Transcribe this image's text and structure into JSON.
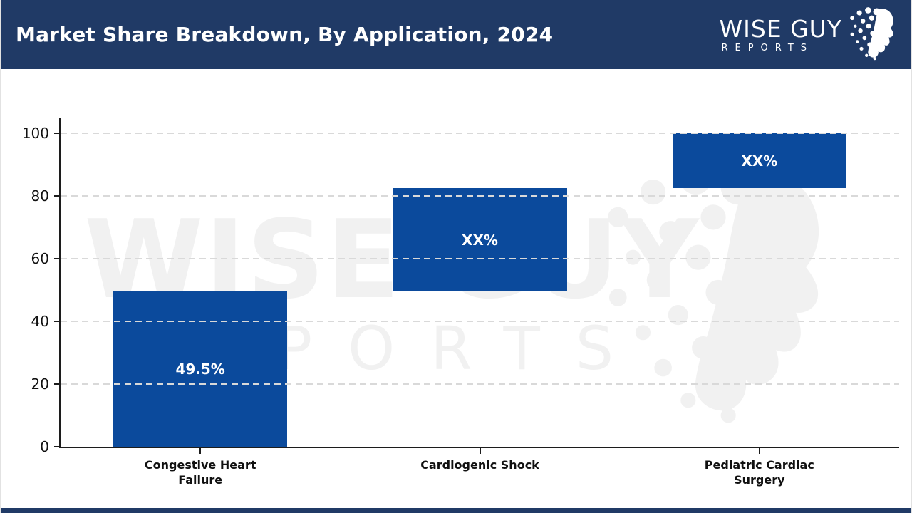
{
  "header": {
    "title": "Market Share Breakdown, By Application, 2024",
    "brand": {
      "line1": "WISE GUY",
      "line2": "REPORTS"
    }
  },
  "watermark": {
    "line1": "WISE GUY",
    "line2": "REPORTS"
  },
  "colors": {
    "header_bg": "#203a66",
    "footer_bg": "#203a66",
    "bar": "#0b4a9c",
    "bar_label": "#ffffff",
    "grid": "#d9d9d9",
    "axis": "#1c1c1c",
    "watermark": "#f1f1f1"
  },
  "chart_data": {
    "type": "bar",
    "variant": "floating_waterfall_segments",
    "title": "Market Share Breakdown, By Application, 2024",
    "categories": [
      "Congestive Heart\nFailure",
      "Cardiogenic Shock",
      "Pediatric Cardiac\nSurgery"
    ],
    "segments": [
      {
        "category": "Congestive Heart Failure",
        "start": 0,
        "end": 49.5,
        "label": "49.5%"
      },
      {
        "category": "Cardiogenic Shock",
        "start": 49.5,
        "end": 82.5,
        "label": "XX%"
      },
      {
        "category": "Pediatric Cardiac Surgery",
        "start": 82.5,
        "end": 100,
        "label": "XX%"
      }
    ],
    "yticks": [
      0,
      20,
      40,
      60,
      80,
      100
    ],
    "ylim": [
      0,
      105
    ],
    "xlabel": "",
    "ylabel": "",
    "grid": "horizontal-dashed",
    "legend": "none"
  }
}
